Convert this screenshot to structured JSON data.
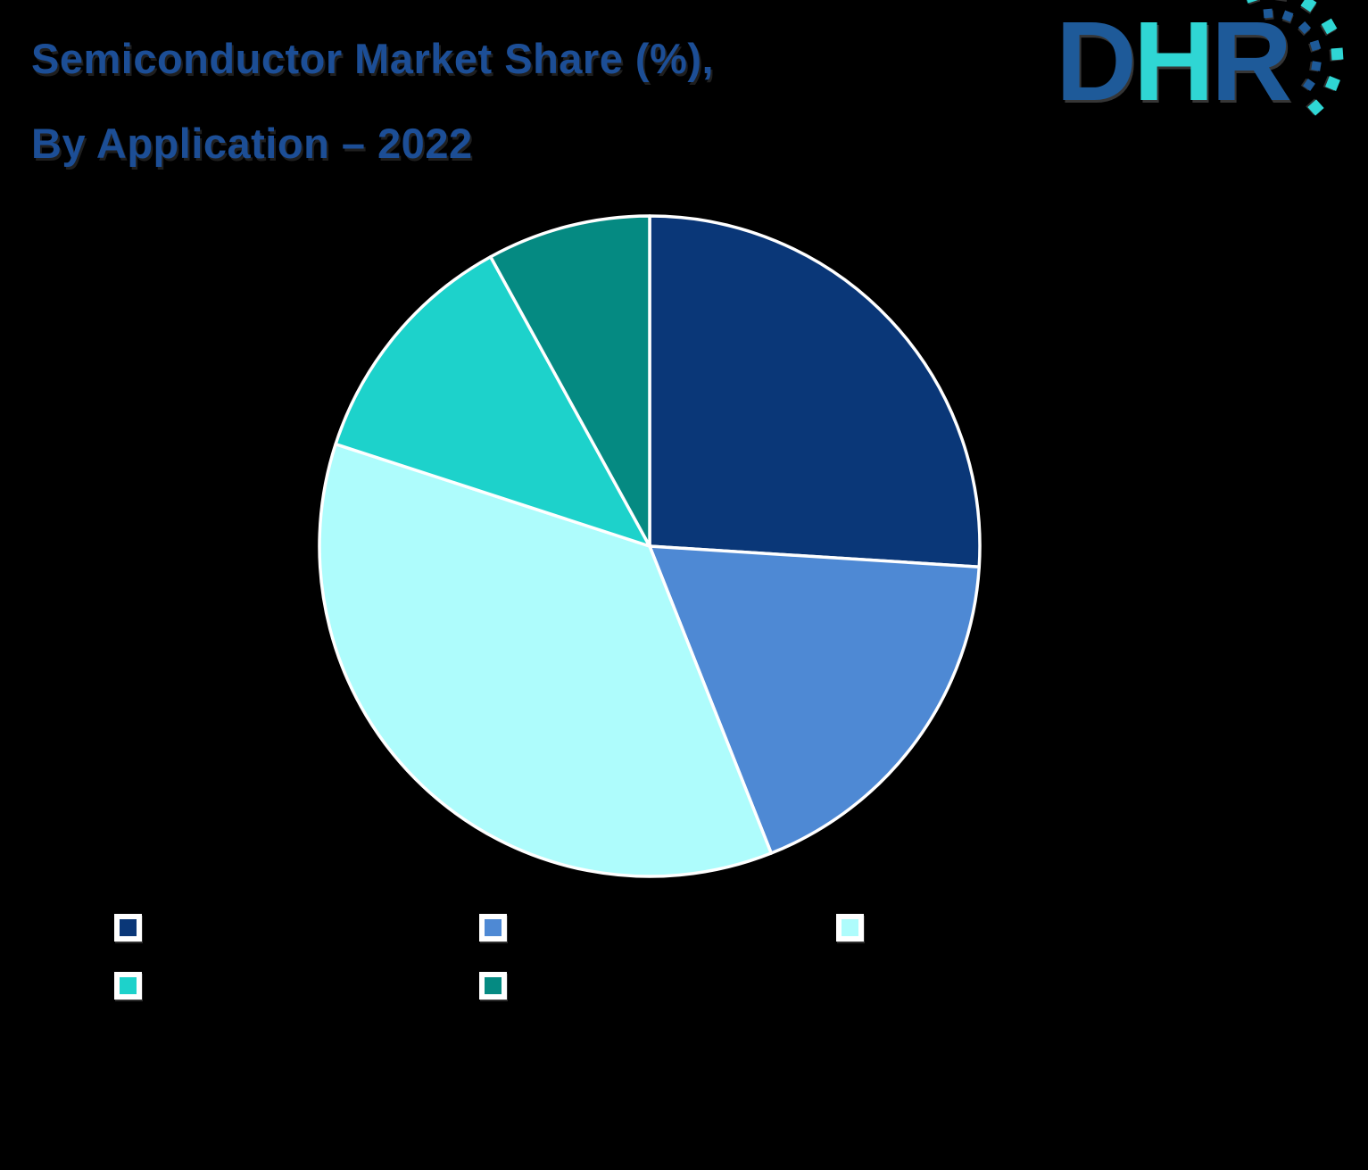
{
  "title": {
    "line1": "Semiconductor Market Share (%),",
    "line2": "By Application – 2022",
    "color": "#1c4e96"
  },
  "logo": {
    "letters": [
      {
        "char": "D",
        "color": "#1e5a99"
      },
      {
        "char": "H",
        "color": "#2fd6d4"
      },
      {
        "char": "R",
        "color": "#1e5a99"
      }
    ],
    "dot_colors": {
      "outer": "#2fd6d4",
      "inner": "#1e5a99"
    }
  },
  "chart_data": {
    "type": "pie",
    "title": "Semiconductor Market Share (%), By Application – 2022",
    "start_angle": "12 o'clock",
    "direction": "clockwise",
    "slices": [
      {
        "name": "navy",
        "value_pct": 26,
        "color": "#0a3778"
      },
      {
        "name": "medium-blue",
        "value_pct": 18,
        "color": "#4e89d4"
      },
      {
        "name": "pale-cyan",
        "value_pct": 36,
        "color": "#aefcfc"
      },
      {
        "name": "turquoise",
        "value_pct": 12,
        "color": "#1dd2cb"
      },
      {
        "name": "dark-teal",
        "value_pct": 8,
        "color": "#058a82"
      }
    ],
    "slice_border_color": "#ffffff",
    "data_labels_visible": false,
    "legend_position": "bottom-left, 3 columns x 2 rows",
    "legend_text_visible": false
  },
  "legend": {
    "items": [
      {
        "swatch_color": "#0a3778",
        "label": ""
      },
      {
        "swatch_color": "#4e89d4",
        "label": ""
      },
      {
        "swatch_color": "#aefcfc",
        "label": ""
      },
      {
        "swatch_color": "#1dd2cb",
        "label": ""
      },
      {
        "swatch_color": "#058a82",
        "label": ""
      }
    ]
  },
  "background_color": "#000000"
}
